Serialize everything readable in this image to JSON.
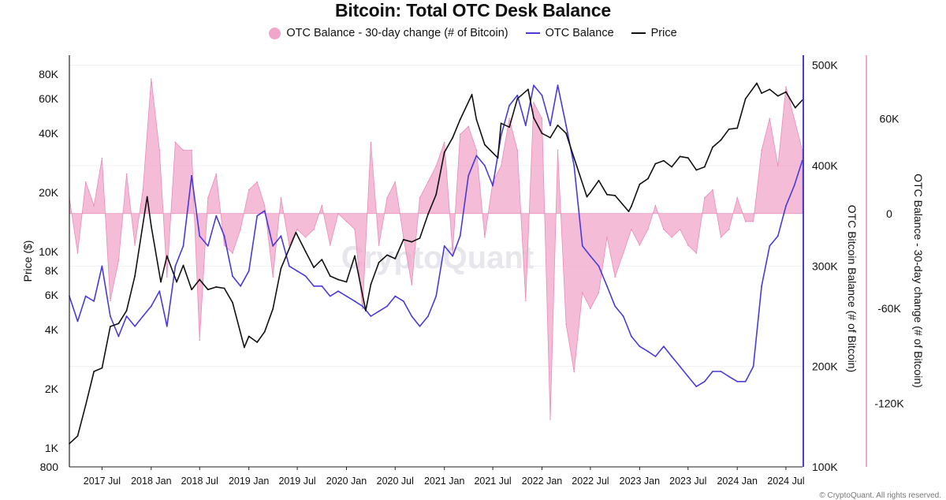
{
  "title": "Bitcoin: Total OTC Desk Balance",
  "legend": [
    {
      "label": "OTC Balance - 30-day change (# of Bitcoin)",
      "kind": "dot",
      "color": "#f0a6c9"
    },
    {
      "label": "OTC Balance",
      "kind": "line",
      "color": "#4a3ad8"
    },
    {
      "label": "Price",
      "kind": "line",
      "color": "#111111"
    }
  ],
  "watermark": "CryptoQuant",
  "footer": "© CryptoQuant. All rights reserved.",
  "chart_data": {
    "type": "line",
    "title": "Bitcoin: Total OTC Desk Balance",
    "x_range": [
      "2017-03-01",
      "2024-09-01"
    ],
    "x_ticks": [
      "2017 Jul",
      "2018 Jan",
      "2018 Jul",
      "2019 Jan",
      "2019 Jul",
      "2020 Jan",
      "2020 Jul",
      "2021 Jan",
      "2021 Jul",
      "2022 Jan",
      "2022 Jul",
      "2023 Jan",
      "2023 Jul",
      "2024 Jan",
      "2024 Jul"
    ],
    "x_tick_dates": [
      "2017-07-01",
      "2018-01-01",
      "2018-07-01",
      "2019-01-01",
      "2019-07-01",
      "2020-01-01",
      "2020-07-01",
      "2021-01-01",
      "2021-07-01",
      "2022-01-01",
      "2022-07-01",
      "2023-01-01",
      "2023-07-01",
      "2024-01-01",
      "2024-07-01"
    ],
    "axes": {
      "price": {
        "label": "Price ($)",
        "scale": "log",
        "range": [
          800,
          100000
        ],
        "ticks": [
          800,
          1000,
          2000,
          4000,
          6000,
          8000,
          10000,
          20000,
          40000,
          60000,
          80000
        ],
        "tick_labels": [
          "800",
          "1K",
          "2K",
          "4K",
          "6K",
          "8K",
          "10K",
          "20K",
          "40K",
          "60K",
          "80K"
        ]
      },
      "balance": {
        "label": "OTC Bitcoin Balance (# of Bitcoin)",
        "scale": "linear",
        "range": [
          100000,
          510000
        ],
        "ticks": [
          100000,
          200000,
          300000,
          400000,
          500000
        ],
        "tick_labels": [
          "100K",
          "200K",
          "300K",
          "400K",
          "500K"
        ]
      },
      "change": {
        "label": "OTC Balance - 30-day change (# of Bitcoin)",
        "scale": "linear",
        "range": [
          -160000,
          100000
        ],
        "ticks": [
          -120000,
          -60000,
          0,
          60000
        ],
        "tick_labels": [
          "-120K",
          "-60K",
          "0",
          "60K"
        ]
      }
    },
    "series": [
      {
        "name": "Price",
        "axis": "price",
        "color": "#111111",
        "x": [
          "2017-03-01",
          "2017-04-01",
          "2017-05-01",
          "2017-06-01",
          "2017-07-01",
          "2017-08-01",
          "2017-09-01",
          "2017-10-01",
          "2017-11-01",
          "2017-12-17",
          "2018-01-01",
          "2018-02-06",
          "2018-03-01",
          "2018-04-06",
          "2018-05-01",
          "2018-06-01",
          "2018-07-01",
          "2018-08-01",
          "2018-09-01",
          "2018-10-01",
          "2018-11-01",
          "2018-12-15",
          "2019-01-01",
          "2019-02-01",
          "2019-03-01",
          "2019-04-01",
          "2019-05-01",
          "2019-06-26",
          "2019-08-01",
          "2019-09-01",
          "2019-10-01",
          "2019-11-01",
          "2019-12-01",
          "2020-01-01",
          "2020-02-01",
          "2020-03-13",
          "2020-04-01",
          "2020-05-01",
          "2020-06-01",
          "2020-07-01",
          "2020-08-01",
          "2020-09-01",
          "2020-10-01",
          "2020-11-01",
          "2020-12-01",
          "2021-01-01",
          "2021-02-01",
          "2021-03-01",
          "2021-04-14",
          "2021-05-01",
          "2021-06-01",
          "2021-07-20",
          "2021-08-01",
          "2021-09-01",
          "2021-10-01",
          "2021-11-10",
          "2021-12-01",
          "2022-01-01",
          "2022-02-01",
          "2022-03-01",
          "2022-04-01",
          "2022-05-01",
          "2022-06-18",
          "2022-07-01",
          "2022-08-01",
          "2022-09-01",
          "2022-10-01",
          "2022-11-21",
          "2022-12-01",
          "2023-01-01",
          "2023-02-01",
          "2023-03-01",
          "2023-04-01",
          "2023-05-01",
          "2023-06-01",
          "2023-07-01",
          "2023-08-01",
          "2023-09-01",
          "2023-10-01",
          "2023-11-01",
          "2023-12-01",
          "2024-01-01",
          "2024-02-01",
          "2024-03-14",
          "2024-04-01",
          "2024-05-01",
          "2024-06-01",
          "2024-07-01",
          "2024-08-05",
          "2024-08-31"
        ],
        "values": [
          1050,
          1150,
          1650,
          2450,
          2550,
          4150,
          4300,
          5000,
          7500,
          19000,
          13500,
          7000,
          9500,
          7000,
          8500,
          6400,
          7200,
          6400,
          6600,
          6500,
          5500,
          3250,
          3700,
          3450,
          3900,
          5100,
          8200,
          12500,
          10000,
          8300,
          9100,
          7500,
          7200,
          7000,
          9500,
          5000,
          6800,
          8800,
          9600,
          9200,
          11500,
          11200,
          11700,
          15500,
          19500,
          32000,
          38000,
          47000,
          63000,
          47000,
          35000,
          30000,
          45000,
          43000,
          60000,
          67000,
          48000,
          40000,
          38000,
          44000,
          40000,
          30000,
          19000,
          20000,
          23000,
          19500,
          19300,
          16000,
          17000,
          22000,
          23500,
          28000,
          29000,
          27000,
          30500,
          30000,
          26000,
          27000,
          34000,
          37000,
          42000,
          42500,
          60000,
          72000,
          64000,
          67000,
          62000,
          65000,
          54000,
          59000
        ]
      },
      {
        "name": "OTC Balance",
        "axis": "balance",
        "color": "#4a3ad8",
        "x": [
          "2017-03-01",
          "2017-04-01",
          "2017-05-01",
          "2017-06-01",
          "2017-07-01",
          "2017-08-01",
          "2017-09-01",
          "2017-10-01",
          "2017-11-01",
          "2017-12-01",
          "2018-01-01",
          "2018-02-01",
          "2018-03-01",
          "2018-04-01",
          "2018-05-01",
          "2018-06-01",
          "2018-07-01",
          "2018-08-01",
          "2018-09-01",
          "2018-10-01",
          "2018-11-01",
          "2018-12-01",
          "2019-01-01",
          "2019-02-01",
          "2019-03-01",
          "2019-04-01",
          "2019-05-01",
          "2019-06-01",
          "2019-07-01",
          "2019-08-01",
          "2019-09-01",
          "2019-10-01",
          "2019-11-01",
          "2019-12-01",
          "2020-01-01",
          "2020-02-01",
          "2020-03-01",
          "2020-04-01",
          "2020-05-01",
          "2020-06-01",
          "2020-07-01",
          "2020-08-01",
          "2020-09-01",
          "2020-10-01",
          "2020-11-01",
          "2020-12-01",
          "2021-01-01",
          "2021-02-01",
          "2021-03-01",
          "2021-04-01",
          "2021-05-01",
          "2021-06-01",
          "2021-07-01",
          "2021-08-01",
          "2021-09-01",
          "2021-10-01",
          "2021-11-01",
          "2021-12-01",
          "2022-01-01",
          "2022-02-01",
          "2022-03-01",
          "2022-04-01",
          "2022-05-01",
          "2022-06-01",
          "2022-07-01",
          "2022-08-01",
          "2022-09-01",
          "2022-10-01",
          "2022-11-01",
          "2022-12-01",
          "2023-01-01",
          "2023-02-01",
          "2023-03-01",
          "2023-04-01",
          "2023-05-01",
          "2023-06-01",
          "2023-07-01",
          "2023-08-01",
          "2023-09-01",
          "2023-10-01",
          "2023-11-01",
          "2023-12-01",
          "2024-01-01",
          "2024-02-01",
          "2024-03-01",
          "2024-04-01",
          "2024-05-01",
          "2024-06-01",
          "2024-07-01",
          "2024-08-01",
          "2024-08-31"
        ],
        "values": [
          270000,
          245000,
          270000,
          265000,
          300000,
          250000,
          230000,
          250000,
          240000,
          250000,
          260000,
          275000,
          240000,
          300000,
          320000,
          390000,
          330000,
          320000,
          350000,
          330000,
          290000,
          280000,
          295000,
          350000,
          355000,
          320000,
          330000,
          300000,
          295000,
          290000,
          280000,
          280000,
          270000,
          275000,
          270000,
          265000,
          260000,
          250000,
          255000,
          260000,
          270000,
          265000,
          250000,
          240000,
          250000,
          270000,
          320000,
          310000,
          330000,
          390000,
          410000,
          400000,
          380000,
          430000,
          460000,
          470000,
          440000,
          480000,
          470000,
          440000,
          480000,
          440000,
          400000,
          320000,
          310000,
          300000,
          280000,
          260000,
          250000,
          230000,
          220000,
          215000,
          210000,
          220000,
          210000,
          200000,
          190000,
          180000,
          185000,
          195000,
          195000,
          190000,
          185000,
          185000,
          200000,
          280000,
          320000,
          330000,
          360000,
          380000,
          405000
        ]
      },
      {
        "name": "OTC Balance - 30-day change (# of Bitcoin)",
        "axis": "change",
        "color": "#f0a6c9",
        "x": [
          "2017-03-01",
          "2017-04-01",
          "2017-05-01",
          "2017-06-01",
          "2017-07-01",
          "2017-08-01",
          "2017-09-01",
          "2017-10-01",
          "2017-11-01",
          "2017-12-01",
          "2018-01-01",
          "2018-02-01",
          "2018-03-01",
          "2018-04-01",
          "2018-05-01",
          "2018-06-01",
          "2018-07-01",
          "2018-08-01",
          "2018-09-01",
          "2018-10-01",
          "2018-11-01",
          "2018-12-01",
          "2019-01-01",
          "2019-02-01",
          "2019-03-01",
          "2019-04-01",
          "2019-05-01",
          "2019-06-01",
          "2019-07-01",
          "2019-08-01",
          "2019-09-01",
          "2019-10-01",
          "2019-11-01",
          "2019-12-01",
          "2020-01-01",
          "2020-02-01",
          "2020-03-01",
          "2020-04-01",
          "2020-05-01",
          "2020-06-01",
          "2020-07-01",
          "2020-08-01",
          "2020-09-01",
          "2020-10-01",
          "2020-11-01",
          "2020-12-01",
          "2021-01-01",
          "2021-02-01",
          "2021-03-01",
          "2021-04-01",
          "2021-05-01",
          "2021-06-01",
          "2021-07-01",
          "2021-08-01",
          "2021-09-01",
          "2021-10-01",
          "2021-11-01",
          "2021-12-01",
          "2022-01-01",
          "2022-02-01",
          "2022-03-01",
          "2022-04-01",
          "2022-05-01",
          "2022-06-01",
          "2022-07-01",
          "2022-08-01",
          "2022-09-01",
          "2022-10-01",
          "2022-11-01",
          "2022-12-01",
          "2023-01-01",
          "2023-02-01",
          "2023-03-01",
          "2023-04-01",
          "2023-05-01",
          "2023-06-01",
          "2023-07-01",
          "2023-08-01",
          "2023-09-01",
          "2023-10-01",
          "2023-11-01",
          "2023-12-01",
          "2024-01-01",
          "2024-02-01",
          "2024-03-01",
          "2024-04-01",
          "2024-05-01",
          "2024-06-01",
          "2024-07-01",
          "2024-08-01",
          "2024-08-31"
        ],
        "values": [
          10000,
          -25000,
          20000,
          5000,
          35000,
          -55000,
          -30000,
          25000,
          -20000,
          15000,
          85000,
          40000,
          -40000,
          45000,
          40000,
          40000,
          -80000,
          10000,
          25000,
          -20000,
          -25000,
          -10000,
          15000,
          20000,
          5000,
          -40000,
          10000,
          -20000,
          -10000,
          -15000,
          -10000,
          5000,
          -20000,
          0,
          -5000,
          -10000,
          -60000,
          45000,
          -20000,
          10000,
          20000,
          -15000,
          -45000,
          10000,
          20000,
          30000,
          45000,
          -25000,
          50000,
          55000,
          40000,
          -15000,
          20000,
          30000,
          60000,
          40000,
          -55000,
          70000,
          60000,
          -130000,
          40000,
          -70000,
          -100000,
          -50000,
          -60000,
          -50000,
          -15000,
          -40000,
          -25000,
          -10000,
          -20000,
          -10000,
          5000,
          -10000,
          -15000,
          -10000,
          -20000,
          -25000,
          10000,
          15000,
          -15000,
          -10000,
          10000,
          -5000,
          -5000,
          40000,
          60000,
          30000,
          80000,
          60000,
          40000
        ]
      }
    ]
  }
}
